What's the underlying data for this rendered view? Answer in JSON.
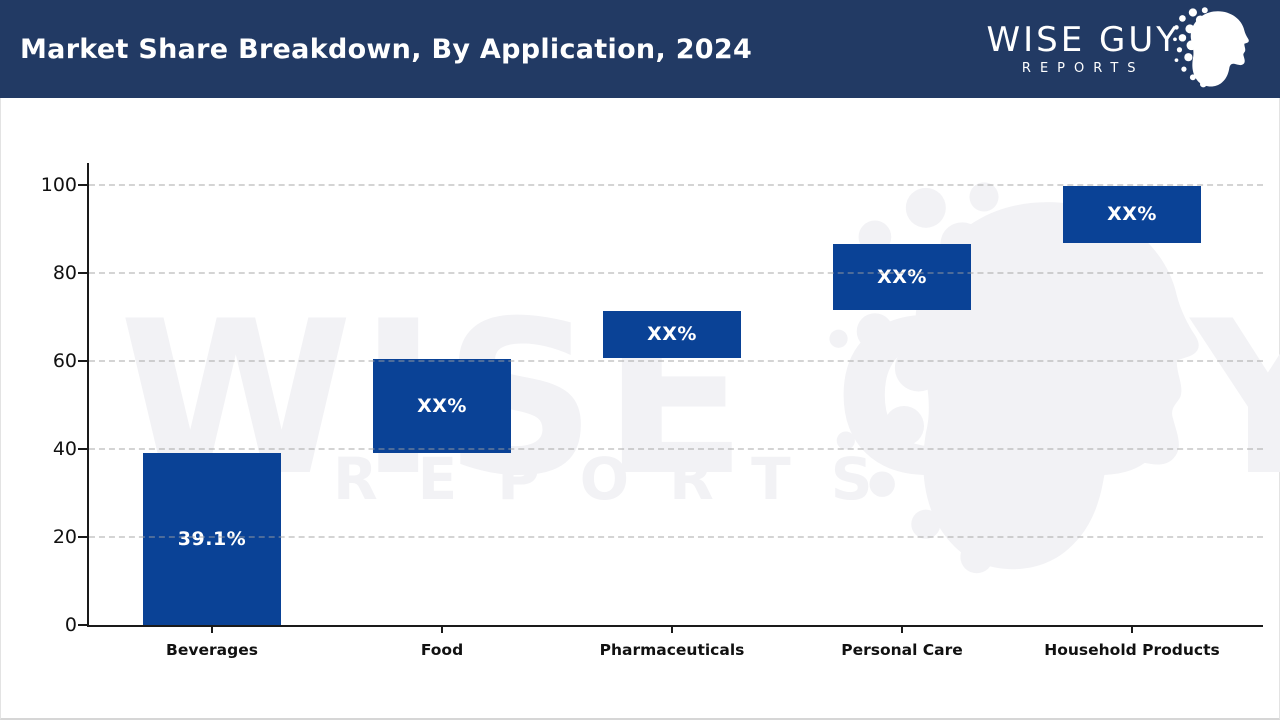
{
  "header": {
    "title": "Market Share Breakdown, By Application, 2024",
    "logo": {
      "line1": "WISE GUY",
      "line2": "REPORTS"
    }
  },
  "watermark": {
    "line1": "WISE GUY",
    "line2": "REPORTS"
  },
  "colors": {
    "header_bg": "#223a64",
    "bar_blue": "#0a4296",
    "axis": "#1a1a1a",
    "grid": "#d9d9d9",
    "bar_label": "#ffffff",
    "watermark": "#f2f2f5"
  },
  "chart_data": {
    "type": "bar",
    "subtype": "floating-waterfall",
    "title": "Market Share Breakdown, By Application, 2024",
    "categories": [
      "Beverages",
      "Food",
      "Pharmaceuticals",
      "Personal Care",
      "Household Products"
    ],
    "bars": [
      {
        "category": "Beverages",
        "start": 0,
        "end": 39.1,
        "label": "39.1%"
      },
      {
        "category": "Food",
        "start": 39.1,
        "end": 60.5,
        "label": "XX%"
      },
      {
        "category": "Pharmaceuticals",
        "start": 60.7,
        "end": 71.4,
        "label": "XX%"
      },
      {
        "category": "Personal Care",
        "start": 71.5,
        "end": 86.7,
        "label": "XX%"
      },
      {
        "category": "Household Products",
        "start": 86.8,
        "end": 99.8,
        "label": "XX%"
      }
    ],
    "xlabel": "",
    "ylabel": "",
    "yticks": [
      0,
      20,
      40,
      60,
      80,
      100
    ],
    "ylim": [
      0,
      105
    ],
    "grid": "horizontal-dashed-above-bars",
    "legend": "none",
    "bar_color": "#0a4296",
    "label_color": "#ffffff"
  }
}
